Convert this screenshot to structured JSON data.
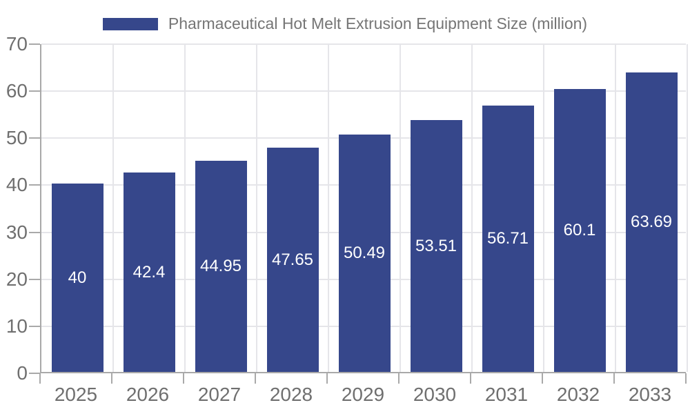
{
  "legend": {
    "label": "Pharmaceutical Hot Melt Extrusion Equipment Size (million)"
  },
  "colors": {
    "bar": "#36478b",
    "legend_swatch": "#36478b",
    "title_text": "#757575",
    "axis_label": "#6f6f6f",
    "value_label": "#ffffff",
    "gridline": "#e5e5e9",
    "axis_line": "#a9a9a9"
  },
  "chart_data": {
    "type": "bar",
    "title": "Pharmaceutical Hot Melt Extrusion Equipment Size (million)",
    "categories": [
      "2025",
      "2026",
      "2027",
      "2028",
      "2029",
      "2030",
      "2031",
      "2032",
      "2033"
    ],
    "values": [
      40,
      42.4,
      44.95,
      47.65,
      50.49,
      53.51,
      56.71,
      60.1,
      63.69
    ],
    "value_labels": [
      "40",
      "42.4",
      "44.95",
      "47.65",
      "50.49",
      "53.51",
      "56.71",
      "60.1",
      "63.69"
    ],
    "xlabel": "",
    "ylabel": "",
    "ylim": [
      0,
      70
    ],
    "yticks": [
      0,
      10,
      20,
      30,
      40,
      50,
      60,
      70
    ],
    "grid": true,
    "legend_position": "top-center",
    "value_label_position": "inside-center"
  }
}
